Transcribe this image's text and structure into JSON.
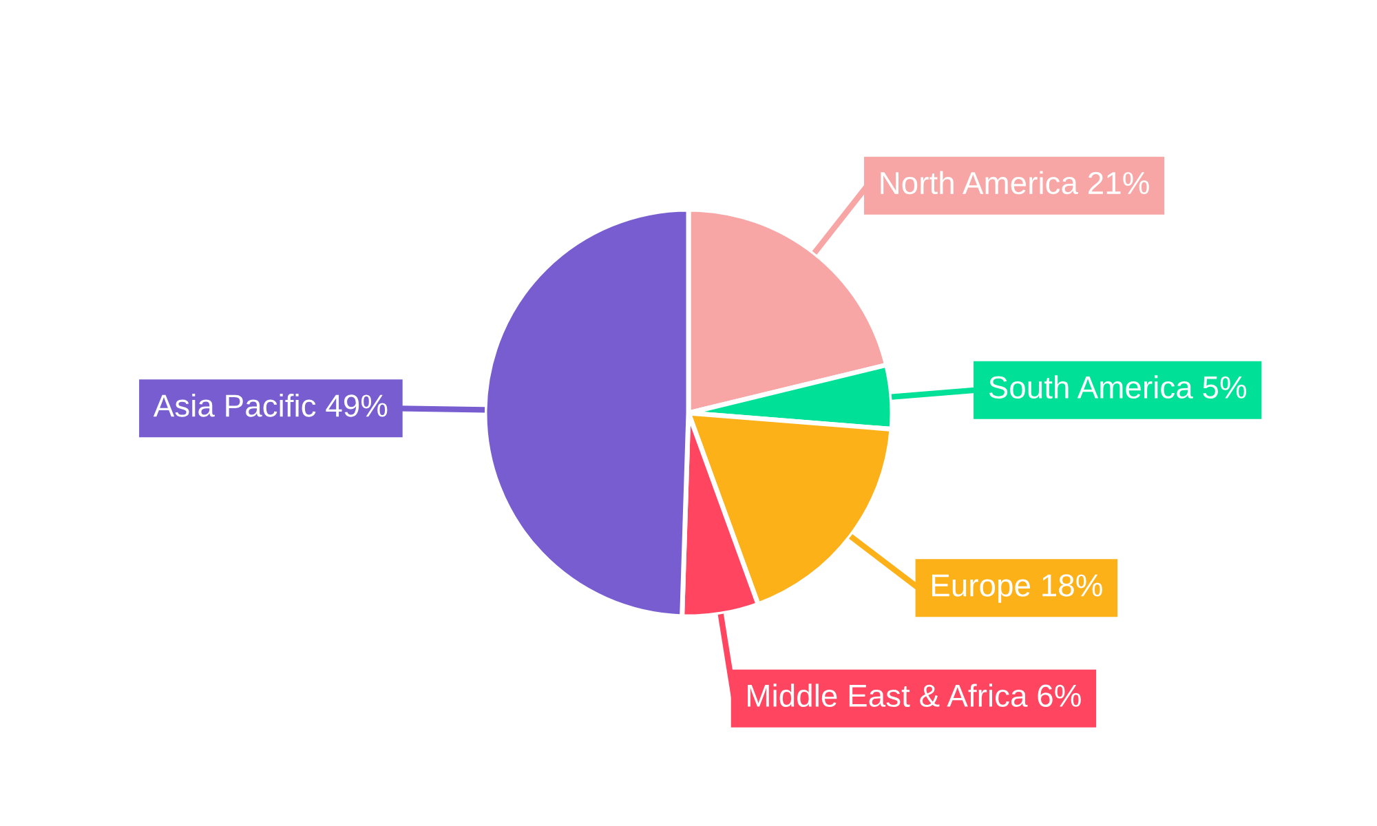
{
  "chart_data": {
    "type": "pie",
    "categories": [
      "North America",
      "South America",
      "Europe",
      "Middle East & Africa",
      "Asia Pacific"
    ],
    "values": [
      21,
      5,
      18,
      6,
      49
    ],
    "value_labels": [
      "21%",
      "5%",
      "18%",
      "6%",
      "49%"
    ],
    "colors": [
      "#f8a5a5",
      "#00e096",
      "#fdb119",
      "#ff4560",
      "#775dd0"
    ],
    "legend": false
  }
}
